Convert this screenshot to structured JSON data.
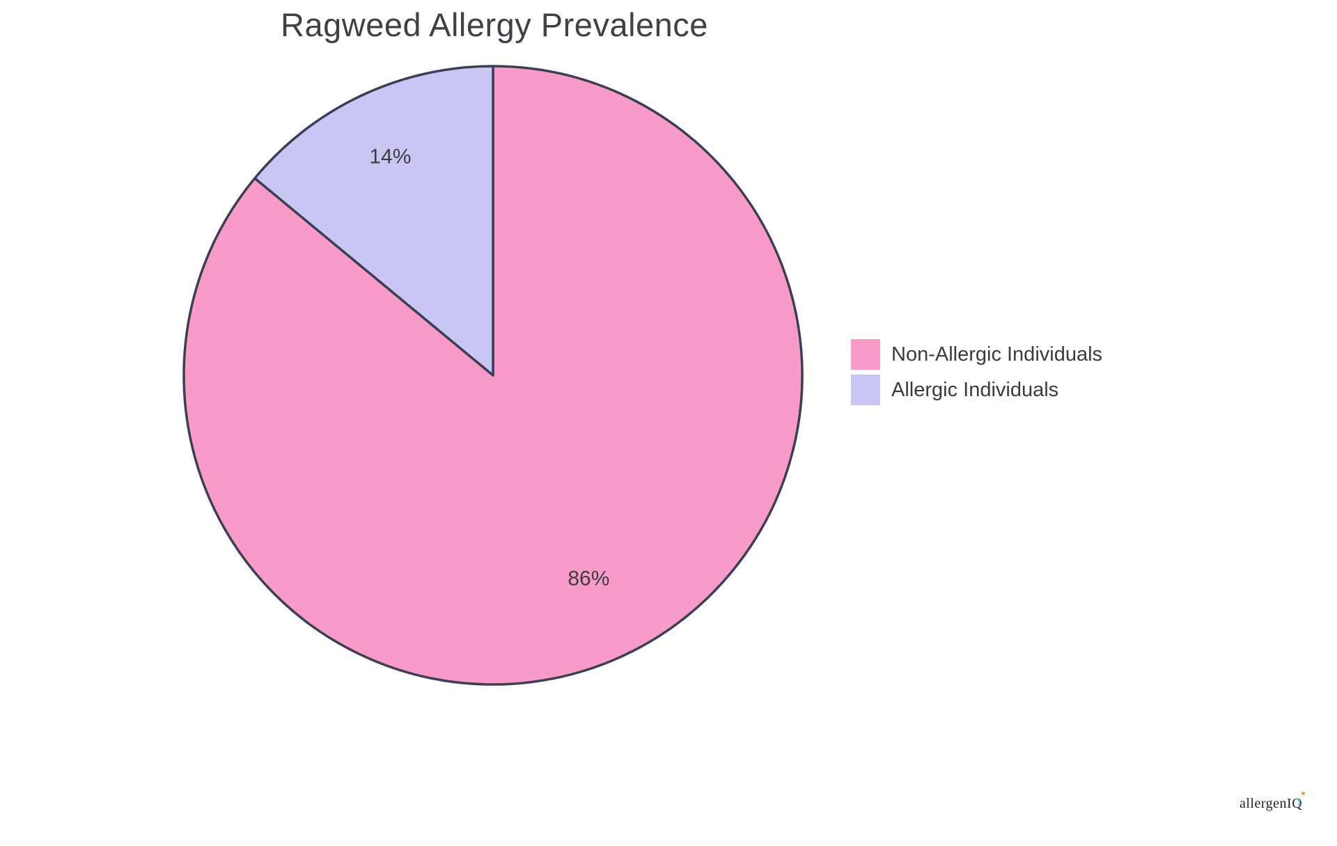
{
  "chart_data": {
    "type": "pie",
    "title": "Ragweed Allergy Prevalence",
    "labels": [
      "Non-Allergic Individuals",
      "Allergic Individuals"
    ],
    "values": [
      86,
      14
    ],
    "slice_labels": [
      "86%",
      "14%"
    ],
    "colors": [
      "#F89BC8",
      "#C9C6F4"
    ],
    "stroke_color": "#3B3E55",
    "stroke_width": 3.5,
    "start_angle_deg": 0,
    "direction": "clockwise",
    "label_radius_frac": [
      0.727,
      0.781
    ],
    "label_color": "#3D3D3D",
    "legend_position": "right",
    "legend_entries": [
      "Non-Allergic Individuals",
      "Allergic Individuals"
    ],
    "background": "#ffffff"
  },
  "watermark": {
    "text_main": "allergenI",
    "text_q": "Q"
  }
}
